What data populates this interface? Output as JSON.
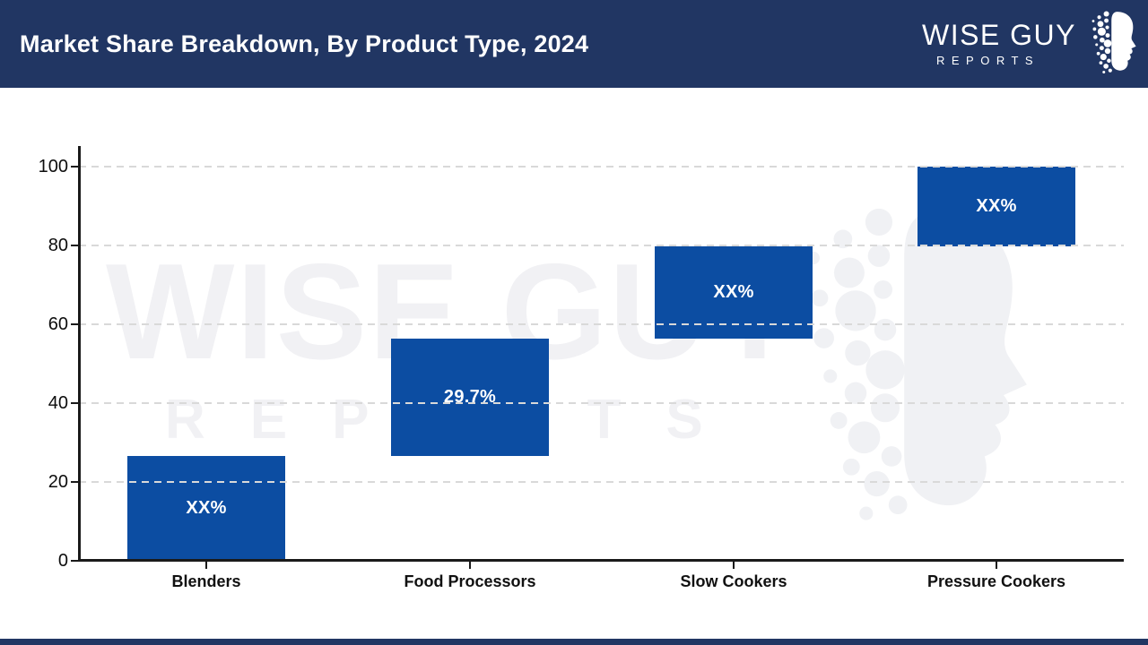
{
  "header": {
    "title": "Market Share Breakdown, By Product Type, 2024",
    "logo": {
      "brand": "WISE GUY",
      "sub": "REPORTS"
    }
  },
  "watermark": {
    "brand": "WISE GUY",
    "sub": "REPORTS"
  },
  "footer": {},
  "colors": {
    "header_bg": "#213663",
    "bar_fill": "#0c4da2",
    "bar_label_text": "#ffffff",
    "axis": "#1a1a1a",
    "gridline": "#d9d9d9",
    "watermark_text": "#f1f1f4",
    "title_text": "#ffffff"
  },
  "chart_data": {
    "type": "bar",
    "subtype": "floating-waterfall",
    "title": "Market Share Breakdown, By Product Type, 2024",
    "unit": "%",
    "categories": [
      "Blenders",
      "Food Processors",
      "Slow Cookers",
      "Pressure Cookers"
    ],
    "segments": [
      {
        "category": "Blenders",
        "start": 0,
        "end": 26.6,
        "value": 26.6,
        "label": "XX%"
      },
      {
        "category": "Food Processors",
        "start": 26.6,
        "end": 56.3,
        "value": 29.7,
        "label": "29.7%"
      },
      {
        "category": "Slow Cookers",
        "start": 56.3,
        "end": 79.8,
        "value": 23.5,
        "label": "XX%"
      },
      {
        "category": "Pressure Cookers",
        "start": 79.8,
        "end": 100.0,
        "value": 20.2,
        "label": "XX%"
      }
    ],
    "y_ticks": [
      0,
      20,
      40,
      60,
      80,
      100
    ],
    "ylim": [
      0,
      105
    ],
    "xlabel": "",
    "ylabel": "",
    "grid": "horizontal-dashed",
    "legend": "none"
  }
}
